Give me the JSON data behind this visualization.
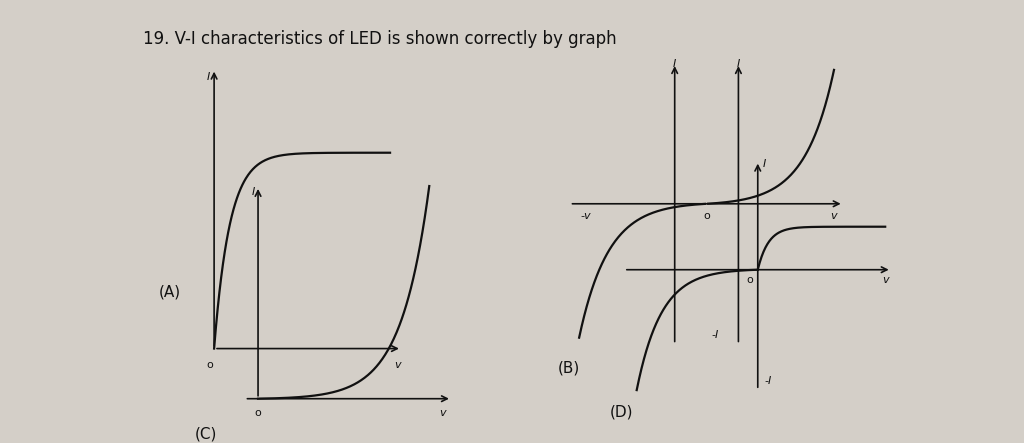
{
  "title": "19. V-I characteristics of LED is shown correctly by graph",
  "bg_color": "#d4cfc8",
  "curve_color": "#111111",
  "axis_color": "#111111",
  "A_label": "(A)",
  "B_label": "(B)",
  "C_label": "(C)",
  "D_label": "(D)",
  "question_num": "19.",
  "xlabel": "v",
  "ylabel": "I",
  "neg_xlabel": "-v",
  "neg_ylabel": "-I",
  "origin": "o"
}
